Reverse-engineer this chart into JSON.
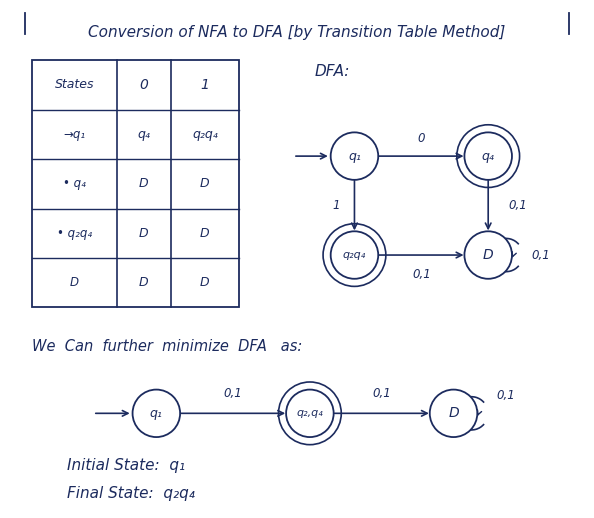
{
  "title": "Conversion of NFA to DFA [by Transition Table Method]",
  "background_color": "#ffffff",
  "table": {
    "col_headers": [
      "States",
      "0",
      "1"
    ],
    "rows": [
      [
        "→q₁",
        "q₄",
        "q₂q₄"
      ],
      [
        "• q₄",
        "D",
        "D"
      ],
      [
        "• q₂q₄",
        "D",
        "D"
      ],
      [
        "D",
        "D",
        "D"
      ]
    ]
  },
  "dfa_label": "DFA:",
  "node_labels": {
    "q1": "q₁",
    "q4": "q₄",
    "q2q4": "q₂q₄",
    "D": "D"
  },
  "minimized_label": "We  Can  further  minimize  DFA   as:",
  "min_node_labels": {
    "q1": "q₁",
    "q2q4": "q₂,q₄",
    "D": "D"
  },
  "initial_state_label": "Initial State:  q₁",
  "final_state_label": "Final State:  q₂q₄",
  "text_color": "#1c2b5e",
  "line_color": "#1c2b5e"
}
